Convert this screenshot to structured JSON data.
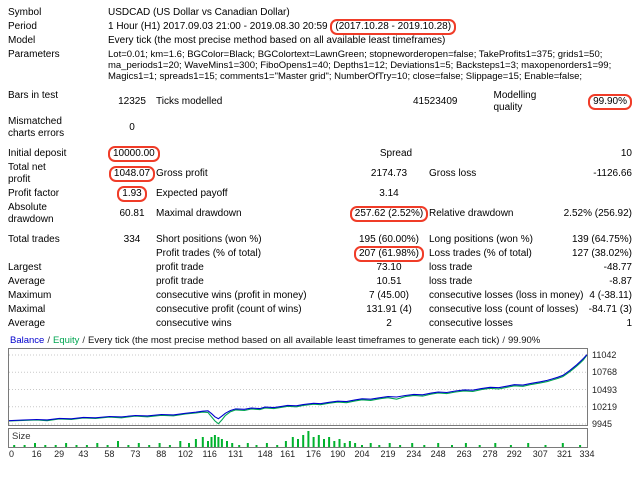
{
  "colors": {
    "highlight": "#f03c28",
    "grid": "#c9c9c9",
    "border": "#7a7a7a",
    "balance": "#0000cd",
    "equity": "#00a551",
    "size_bars": "#00b22d"
  },
  "report": {
    "rows": {
      "symbol": {
        "label": "Symbol",
        "value": "USDCAD (US Dollar vs Canadian Dollar)"
      },
      "period": {
        "label": "Period",
        "value": "1 Hour (H1) 2017.09.03 21:00 - 2019.08.30 20:59",
        "highlight": "(2017.10.28 - 2019.10.28)"
      },
      "model": {
        "label": "Model",
        "value": "Every tick (the most precise method based on all available least timeframes)"
      },
      "parameters": {
        "label": "Parameters",
        "value": "Lot=0.01; km=1.6; BGColor=Black; BGColortext=LawnGreen; stopneworderopen=false; TakeProfits1=375; grids1=50; ma_periods1=20; WaveMins1=300; FiboOpens1=40; Depths1=12; Deviations1=5; Backsteps1=3; maxopenorders1=99; Magics1=1; spreads1=15; comments1=\"Master grid\"; NumberOfTry=10; close=false; Slippage=15; Enable=false;"
      },
      "bars_in_test": {
        "label": "Bars in test",
        "value": "12325",
        "label2": "Ticks modelled",
        "value2": "41523409",
        "label3": "Modelling quality",
        "value3": "99.90%"
      },
      "mismatched": {
        "label": "Mismatched charts errors",
        "value": "0"
      },
      "initial_deposit": {
        "label": "Initial deposit",
        "value": "10000.00",
        "label2": "Spread",
        "value2": "10"
      },
      "total_net_profit": {
        "label": "Total net profit",
        "value": "1048.07",
        "label2": "Gross profit",
        "value2": "2174.73",
        "label3": "Gross loss",
        "value3": "-1126.66"
      },
      "profit_factor": {
        "label": "Profit factor",
        "value": "1.93",
        "label2": "Expected payoff",
        "value2": "3.14"
      },
      "drawdown": {
        "label": "Absolute drawdown",
        "value": "60.81",
        "label2": "Maximal drawdown",
        "value2": "257.62 (2.52%)",
        "label3": "Relative drawdown",
        "value3": "2.52% (256.92)"
      },
      "total_trades": {
        "label": "Total trades",
        "value": "334",
        "label2": "Short positions (won %)",
        "value2": "195 (60.00%)",
        "label3": "Long positions (won %)",
        "value3": "139 (64.75%)"
      },
      "profit_trades": {
        "label2": "Profit trades (% of total)",
        "value2": "207 (61.98%)",
        "label3": "Loss trades (% of total)",
        "value3": "127 (38.02%)"
      },
      "largest": {
        "label": "Largest",
        "label2": "profit trade",
        "value2": "73.10",
        "label3": "loss trade",
        "value3": "-48.77"
      },
      "average_trade": {
        "label": "Average",
        "label2": "profit trade",
        "value2": "10.51",
        "label3": "loss trade",
        "value3": "-8.87"
      },
      "maximum_consecutive": {
        "label": "Maximum",
        "label2": "consecutive wins (profit in money)",
        "value2": "7 (45.00)",
        "label3": "consecutive losses (loss in money)",
        "value3": "4 (-38.11)"
      },
      "maximal_consecutive": {
        "label": "Maximal",
        "label2": "consecutive profit (count of wins)",
        "value2": "131.91 (4)",
        "label3": "consecutive loss (count of losses)",
        "value3": "-84.71 (3)"
      },
      "average_consecutive": {
        "label": "Average",
        "label2": "consecutive wins",
        "value2": "2",
        "label3": "consecutive losses",
        "value3": "1"
      }
    }
  },
  "chart_data": {
    "type": "line",
    "separator": "/",
    "subtitle": "Every tick (the most precise method based on all available least timeframes to generate each tick)",
    "quality": "99.90%",
    "x_range": [
      0,
      334
    ],
    "y_range": [
      9945,
      11090
    ],
    "x_ticks": [
      0,
      16,
      29,
      43,
      58,
      73,
      88,
      102,
      116,
      131,
      148,
      161,
      176,
      190,
      204,
      219,
      234,
      248,
      263,
      278,
      292,
      307,
      321,
      334
    ],
    "y_ticks": [
      11042,
      10768,
      10493,
      10219,
      9945
    ],
    "series": [
      {
        "name": "Balance",
        "color": "#0000cd",
        "points": [
          [
            0,
            9998
          ],
          [
            8,
            10008
          ],
          [
            16,
            10016
          ],
          [
            22,
            10010
          ],
          [
            29,
            10034
          ],
          [
            36,
            10028
          ],
          [
            43,
            10050
          ],
          [
            50,
            10044
          ],
          [
            58,
            10064
          ],
          [
            65,
            10058
          ],
          [
            73,
            10080
          ],
          [
            80,
            10074
          ],
          [
            88,
            10096
          ],
          [
            95,
            10090
          ],
          [
            102,
            10115
          ],
          [
            108,
            10132
          ],
          [
            112,
            10148
          ],
          [
            115,
            10155
          ],
          [
            117,
            10110
          ],
          [
            119,
            10060
          ],
          [
            121,
            10030
          ],
          [
            123,
            10070
          ],
          [
            125,
            10115
          ],
          [
            128,
            10160
          ],
          [
            131,
            10185
          ],
          [
            136,
            10178
          ],
          [
            140,
            10198
          ],
          [
            145,
            10190
          ],
          [
            148,
            10214
          ],
          [
            153,
            10206
          ],
          [
            158,
            10226
          ],
          [
            161,
            10240
          ],
          [
            166,
            10234
          ],
          [
            170,
            10254
          ],
          [
            176,
            10274
          ],
          [
            180,
            10268
          ],
          [
            185,
            10290
          ],
          [
            190,
            10308
          ],
          [
            195,
            10302
          ],
          [
            200,
            10328
          ],
          [
            204,
            10346
          ],
          [
            209,
            10340
          ],
          [
            214,
            10362
          ],
          [
            219,
            10380
          ],
          [
            224,
            10374
          ],
          [
            229,
            10398
          ],
          [
            234,
            10416
          ],
          [
            239,
            10410
          ],
          [
            244,
            10436
          ],
          [
            248,
            10452
          ],
          [
            253,
            10446
          ],
          [
            258,
            10470
          ],
          [
            263,
            10488
          ],
          [
            268,
            10482
          ],
          [
            273,
            10508
          ],
          [
            278,
            10528
          ],
          [
            283,
            10522
          ],
          [
            288,
            10548
          ],
          [
            292,
            10570
          ],
          [
            297,
            10564
          ],
          [
            302,
            10592
          ],
          [
            307,
            10616
          ],
          [
            311,
            10638
          ],
          [
            314,
            10662
          ],
          [
            317,
            10688
          ],
          [
            320,
            10718
          ],
          [
            322,
            10755
          ],
          [
            324,
            10795
          ],
          [
            326,
            10840
          ],
          [
            328,
            10885
          ],
          [
            330,
            10935
          ],
          [
            332,
            10988
          ],
          [
            334,
            11048
          ]
        ]
      },
      {
        "name": "Equity",
        "color": "#00a551",
        "points": [
          [
            0,
            9994
          ],
          [
            8,
            10000
          ],
          [
            16,
            10008
          ],
          [
            22,
            9998
          ],
          [
            29,
            10024
          ],
          [
            36,
            10016
          ],
          [
            43,
            10040
          ],
          [
            50,
            10032
          ],
          [
            58,
            10054
          ],
          [
            65,
            10044
          ],
          [
            73,
            10070
          ],
          [
            80,
            10060
          ],
          [
            88,
            10084
          ],
          [
            95,
            10076
          ],
          [
            102,
            10104
          ],
          [
            108,
            10120
          ],
          [
            112,
            10134
          ],
          [
            115,
            10128
          ],
          [
            117,
            10060
          ],
          [
            119,
            9995
          ],
          [
            121,
            9948
          ],
          [
            123,
            10010
          ],
          [
            125,
            10080
          ],
          [
            128,
            10140
          ],
          [
            131,
            10170
          ],
          [
            136,
            10160
          ],
          [
            140,
            10184
          ],
          [
            145,
            10174
          ],
          [
            148,
            10200
          ],
          [
            153,
            10190
          ],
          [
            158,
            10212
          ],
          [
            161,
            10226
          ],
          [
            166,
            10218
          ],
          [
            170,
            10240
          ],
          [
            176,
            10260
          ],
          [
            180,
            10252
          ],
          [
            185,
            10276
          ],
          [
            190,
            10294
          ],
          [
            195,
            10284
          ],
          [
            200,
            10312
          ],
          [
            204,
            10330
          ],
          [
            209,
            10320
          ],
          [
            214,
            10346
          ],
          [
            219,
            10364
          ],
          [
            224,
            10340
          ],
          [
            229,
            10380
          ],
          [
            234,
            10400
          ],
          [
            239,
            10388
          ],
          [
            244,
            10420
          ],
          [
            248,
            10438
          ],
          [
            253,
            10428
          ],
          [
            258,
            10454
          ],
          [
            263,
            10472
          ],
          [
            268,
            10462
          ],
          [
            273,
            10492
          ],
          [
            278,
            10512
          ],
          [
            283,
            10502
          ],
          [
            288,
            10530
          ],
          [
            292,
            10552
          ],
          [
            297,
            10544
          ],
          [
            302,
            10574
          ],
          [
            307,
            10598
          ],
          [
            311,
            10620
          ],
          [
            314,
            10644
          ],
          [
            317,
            10668
          ],
          [
            320,
            10698
          ],
          [
            322,
            10735
          ],
          [
            324,
            10775
          ],
          [
            326,
            10818
          ],
          [
            328,
            10864
          ],
          [
            330,
            10914
          ],
          [
            332,
            10966
          ],
          [
            334,
            11042
          ]
        ]
      }
    ],
    "size_histogram": {
      "label": "Size",
      "color": "#00b22d",
      "max": 8,
      "bars": [
        [
          3,
          1
        ],
        [
          9,
          1
        ],
        [
          15,
          2
        ],
        [
          21,
          1
        ],
        [
          27,
          1
        ],
        [
          33,
          2
        ],
        [
          39,
          1
        ],
        [
          45,
          1
        ],
        [
          51,
          2
        ],
        [
          57,
          1
        ],
        [
          63,
          3
        ],
        [
          69,
          1
        ],
        [
          75,
          2
        ],
        [
          81,
          1
        ],
        [
          87,
          2
        ],
        [
          93,
          1
        ],
        [
          99,
          3
        ],
        [
          104,
          2
        ],
        [
          108,
          4
        ],
        [
          112,
          5
        ],
        [
          115,
          3
        ],
        [
          117,
          5
        ],
        [
          119,
          6
        ],
        [
          121,
          5
        ],
        [
          123,
          4
        ],
        [
          126,
          3
        ],
        [
          129,
          2
        ],
        [
          133,
          1
        ],
        [
          138,
          2
        ],
        [
          143,
          1
        ],
        [
          149,
          2
        ],
        [
          155,
          1
        ],
        [
          160,
          3
        ],
        [
          164,
          5
        ],
        [
          167,
          4
        ],
        [
          170,
          6
        ],
        [
          173,
          8
        ],
        [
          176,
          5
        ],
        [
          179,
          6
        ],
        [
          182,
          4
        ],
        [
          185,
          5
        ],
        [
          188,
          3
        ],
        [
          191,
          4
        ],
        [
          194,
          2
        ],
        [
          197,
          3
        ],
        [
          200,
          2
        ],
        [
          204,
          1
        ],
        [
          209,
          2
        ],
        [
          214,
          1
        ],
        [
          220,
          2
        ],
        [
          226,
          1
        ],
        [
          233,
          2
        ],
        [
          240,
          1
        ],
        [
          248,
          2
        ],
        [
          256,
          1
        ],
        [
          264,
          2
        ],
        [
          272,
          1
        ],
        [
          281,
          2
        ],
        [
          290,
          1
        ],
        [
          300,
          2
        ],
        [
          310,
          1
        ],
        [
          320,
          2
        ],
        [
          330,
          1
        ]
      ]
    }
  }
}
